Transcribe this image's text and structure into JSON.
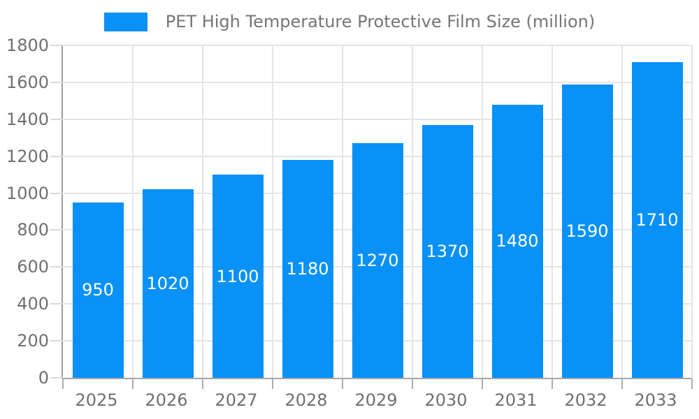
{
  "chart_data": {
    "type": "bar",
    "title": "PET High Temperature Protective Film Size (million)",
    "legend": [
      "PET High Temperature Protective Film Size (million)"
    ],
    "legend_position": "top",
    "categories": [
      "2025",
      "2026",
      "2027",
      "2028",
      "2029",
      "2030",
      "2031",
      "2032",
      "2033"
    ],
    "values": [
      950,
      1020,
      1100,
      1180,
      1270,
      1370,
      1480,
      1590,
      1710
    ],
    "value_labels_shown": true,
    "value_label_position": "inside-center",
    "xlabel": "",
    "ylabel": "",
    "ylim": [
      0,
      1800
    ],
    "ytick_step": 200,
    "yticks": [
      0,
      200,
      400,
      600,
      800,
      1000,
      1200,
      1400,
      1600,
      1800
    ],
    "grid": true,
    "colors": {
      "bar": "#0891f7",
      "value_label": "#ffffff",
      "grid_line": "#e4e4e4",
      "axis_line": "#9c9c9c",
      "tick_text": "#6f6f6f",
      "legend_text": "#757575",
      "background": "#ffffff"
    }
  }
}
